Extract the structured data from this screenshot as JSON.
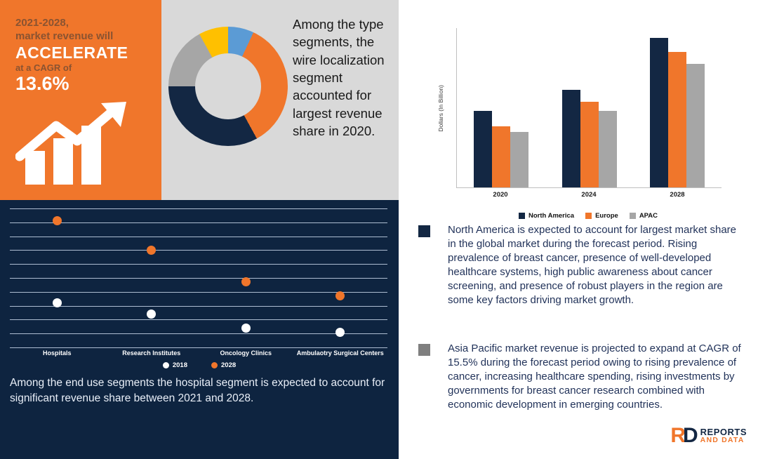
{
  "accelerate_card": {
    "period": "2021-2028,",
    "line2": "market revenue will",
    "emphasis": "ACCELERATE",
    "line3": "at a CAGR of",
    "cagr": "13.6%"
  },
  "type_segment_caption": "Among the type segments, the wire localization segment accounted for largest revenue share in 2020.",
  "end_use_caption": "Among the end use segments the hospital segment is expected to account for significant revenue share between 2021 and 2028.",
  "bullets": [
    {
      "color": "#132743",
      "text": "North America is expected to account for largest market share in the global market during the forecast period. Rising prevalence of breast cancer, presence of well-developed healthcare systems, high public awareness about cancer screening, and presence of robust players in the region are some key factors driving market growth."
    },
    {
      "color": "#7f7f7f",
      "text": "Asia Pacific market revenue is projected to expand at CAGR of 15.5% during the forecast period owing to rising prevalence of cancer, increasing healthcare spending, rising investments by governments for breast cancer research combined with economic development in emerging countries."
    }
  ],
  "logo": {
    "r": "R",
    "d": "D",
    "line1": "REPORTS",
    "line2": "AND DATA"
  },
  "colors": {
    "orange": "#f0762b",
    "navy": "#132743",
    "panel_navy": "#0e2440",
    "gray": "#a6a6a6",
    "yellow": "#ffc000",
    "blue": "#5b9bd5"
  },
  "chart_data": [
    {
      "id": "donut",
      "type": "pie",
      "title": "Type segment revenue share 2020",
      "values": [
        7,
        35,
        33,
        17,
        8
      ],
      "colors": [
        "#5b9bd5",
        "#f0762b",
        "#132743",
        "#a6a6a6",
        "#ffc000"
      ],
      "legend": "none"
    },
    {
      "id": "grouped_bar",
      "type": "bar",
      "categories": [
        "2020",
        "2024",
        "2028"
      ],
      "series": [
        {
          "name": "North America",
          "color": "#132743",
          "values": [
            1.1,
            1.4,
            2.15
          ]
        },
        {
          "name": "Europe",
          "color": "#f0762b",
          "values": [
            0.88,
            1.23,
            1.95
          ]
        },
        {
          "name": "APAC",
          "color": "#a6a6a6",
          "values": [
            0.8,
            1.1,
            1.78
          ]
        }
      ],
      "xlabel": "",
      "ylabel": "Dollars (In Billion)",
      "ylim": [
        0,
        2.3
      ],
      "grid": false,
      "legend_position": "bottom"
    },
    {
      "id": "dot_plot",
      "type": "scatter",
      "categories": [
        "Hospitals",
        "Research Institutes",
        "Oncology Clinics",
        "Ambulaotry Surgical Centers"
      ],
      "series": [
        {
          "name": "2018",
          "color": "#ffffff",
          "values": [
            3.2,
            2.4,
            1.4,
            1.1
          ]
        },
        {
          "name": "2028",
          "color": "#f0762b",
          "values": [
            9.1,
            7.0,
            4.7,
            3.7
          ]
        }
      ],
      "ylim": [
        0,
        10
      ],
      "gridlines": 11,
      "grid": true,
      "legend_position": "bottom"
    }
  ]
}
